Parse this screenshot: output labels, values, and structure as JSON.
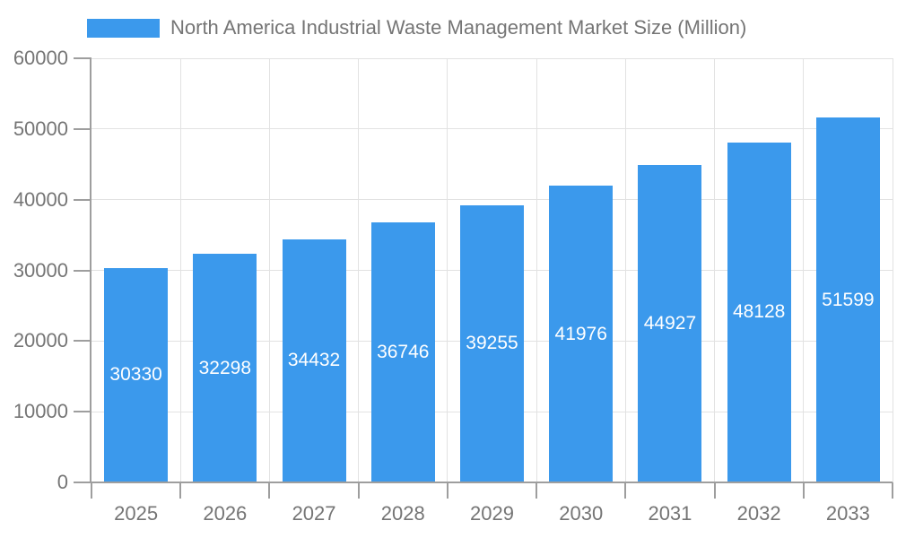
{
  "chart_data": {
    "type": "bar",
    "title": "North America Industrial Waste Management Market Size (Million)",
    "categories": [
      "2025",
      "2026",
      "2027",
      "2028",
      "2029",
      "2030",
      "2031",
      "2032",
      "2033"
    ],
    "values": [
      30330,
      32298,
      34432,
      36746,
      39255,
      41976,
      44927,
      48128,
      51599
    ],
    "xlabel": "",
    "ylabel": "",
    "ylim": [
      0,
      60000
    ],
    "y_ticks": [
      0,
      10000,
      20000,
      30000,
      40000,
      50000,
      60000
    ],
    "grid": true,
    "legend_position": "top-left",
    "value_label_position": "inside-center",
    "colors": {
      "bar": "#3B99EC",
      "value_label": "#FFFFFF",
      "grid": "#E2E2E2",
      "axis": "#9E9E9E",
      "tick_label": "#757575",
      "legend_label": "#757575",
      "background": "#FFFFFF"
    }
  }
}
